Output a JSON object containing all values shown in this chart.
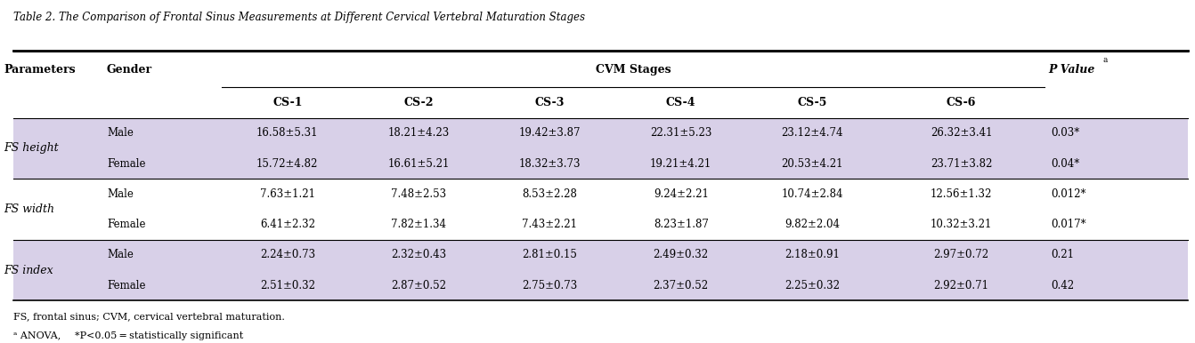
{
  "title": "Table 2. The Comparison of Frontal Sinus Measurements at Different Cervical Vertebral Maturation Stages",
  "footnote1": "FS, frontal sinus; CVM, cervical vertebral maturation.",
  "footnote2": "a ANOVA, *P<0.05 = statistically significant",
  "rows": [
    {
      "param": "FS height",
      "gender": "Male",
      "cs1": "16.58±5.31",
      "cs2": "18.21±4.23",
      "cs3": "19.42±3.87",
      "cs4": "22.31±5.23",
      "cs5": "23.12±4.74",
      "cs6": "26.32±3.41",
      "pval": "0.03*",
      "shaded": true
    },
    {
      "param": "",
      "gender": "Female",
      "cs1": "15.72±4.82",
      "cs2": "16.61±5.21",
      "cs3": "18.32±3.73",
      "cs4": "19.21±4.21",
      "cs5": "20.53±4.21",
      "cs6": "23.71±3.82",
      "pval": "0.04*",
      "shaded": true
    },
    {
      "param": "FS width",
      "gender": "Male",
      "cs1": "7.63±1.21",
      "cs2": "7.48±2.53",
      "cs3": "8.53±2.28",
      "cs4": "9.24±2.21",
      "cs5": "10.74±2.84",
      "cs6": "12.56±1.32",
      "pval": "0.012*",
      "shaded": false
    },
    {
      "param": "",
      "gender": "Female",
      "cs1": "6.41±2.32",
      "cs2": "7.82±1.34",
      "cs3": "7.43±2.21",
      "cs4": "8.23±1.87",
      "cs5": "9.82±2.04",
      "cs6": "10.32±3.21",
      "pval": "0.017*",
      "shaded": false
    },
    {
      "param": "FS index",
      "gender": "Male",
      "cs1": "2.24±0.73",
      "cs2": "2.32±0.43",
      "cs3": "2.81±0.15",
      "cs4": "2.49±0.32",
      "cs5": "2.18±0.91",
      "cs6": "2.97±0.72",
      "pval": "0.21",
      "shaded": true
    },
    {
      "param": "",
      "gender": "Female",
      "cs1": "2.51±0.32",
      "cs2": "2.87±0.52",
      "cs3": "2.75±0.73",
      "cs4": "2.37±0.52",
      "cs5": "2.25±0.32",
      "cs6": "2.92±0.71",
      "pval": "0.42",
      "shaded": true
    }
  ],
  "shaded_color": "#d8d0e8",
  "white_color": "#ffffff",
  "text_color": "#000000",
  "line_color": "#000000",
  "figsize": [
    13.42,
    3.86
  ],
  "dpi": 100
}
